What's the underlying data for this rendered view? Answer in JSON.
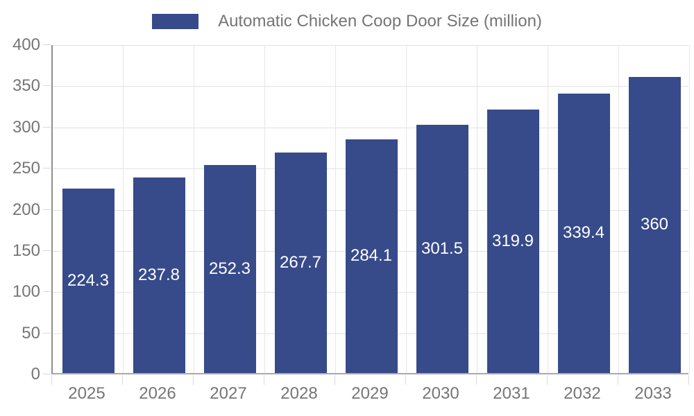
{
  "legend": {
    "label": "Automatic Chicken Coop Door Size (million)"
  },
  "chart_data": {
    "type": "bar",
    "title": "Automatic Chicken Coop Door Size (million)",
    "categories": [
      "2025",
      "2026",
      "2027",
      "2028",
      "2029",
      "2030",
      "2031",
      "2032",
      "2033"
    ],
    "values": [
      224.3,
      237.8,
      252.3,
      267.7,
      284.1,
      301.5,
      319.9,
      339.4,
      360
    ],
    "xlabel": "",
    "ylabel": "",
    "ylim": [
      0,
      400
    ],
    "ytick_step": 50,
    "yticks": [
      0,
      50,
      100,
      150,
      200,
      250,
      300,
      350,
      400
    ],
    "grid": true,
    "legend_position": "top-center",
    "bar_color": "#374a8a",
    "value_label_color": "#ffffff",
    "axis_text_color": "#757575"
  }
}
